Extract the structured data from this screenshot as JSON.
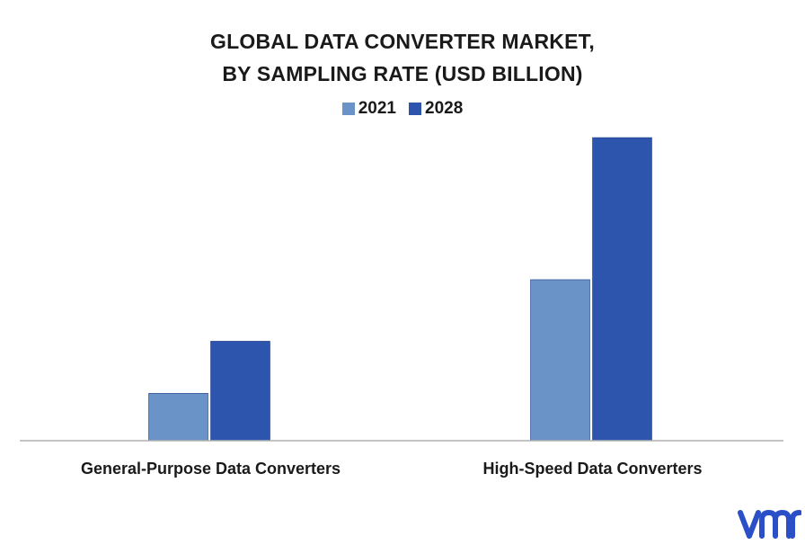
{
  "chart_data": {
    "type": "bar",
    "title_lines": [
      "GLOBAL DATA CONVERTER MARKET,",
      "BY SAMPLING RATE (USD BILLION)"
    ],
    "categories": [
      "General-Purpose Data Converters",
      "High-Speed Data Converters"
    ],
    "series": [
      {
        "name": "2021",
        "values": [
          1.0,
          3.4
        ],
        "color": "#6a93c8"
      },
      {
        "name": "2028",
        "values": [
          2.1,
          6.4
        ],
        "color": "#2e55ad"
      }
    ],
    "ylim": [
      0,
      6.4
    ],
    "grid": false,
    "legend_position": "top-center",
    "axis_color": "#b0b0b0"
  },
  "logo": {
    "text": "vmr",
    "color": "#2b4fc7"
  }
}
